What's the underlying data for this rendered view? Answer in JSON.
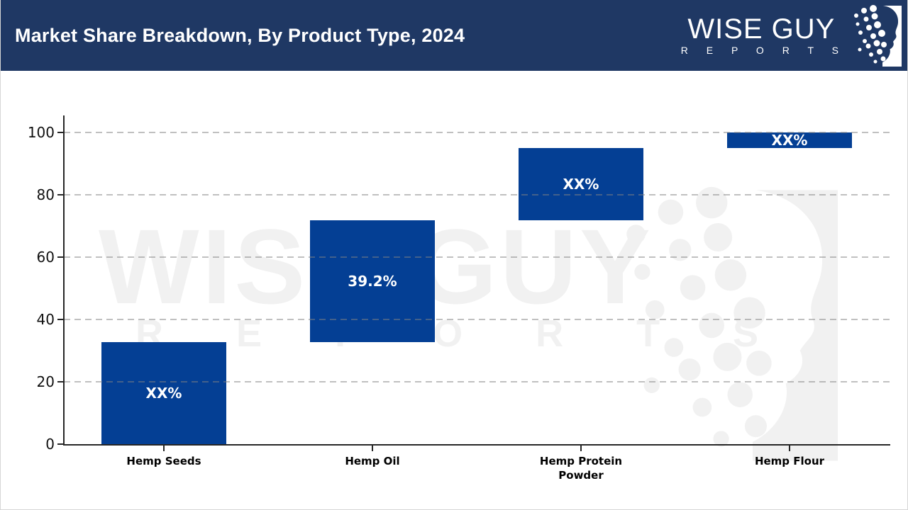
{
  "header": {
    "title": "Market Share Breakdown, By Product Type, 2024",
    "bg_color": "#1f3864",
    "logo": {
      "line1": "WISE GUY",
      "line2": "R E P O R T S"
    }
  },
  "watermark": {
    "line1": "WISE GUY",
    "line2": "R E P O R T S"
  },
  "chart_data": {
    "type": "bar",
    "subtype": "waterfall",
    "title": "Market Share Breakdown, By Product Type, 2024",
    "categories": [
      "Hemp Seeds",
      "Hemp Oil",
      "Hemp Protein Powder",
      "Hemp Flour"
    ],
    "bar_labels": [
      "XX%",
      "39.2%",
      "XX%",
      "XX%"
    ],
    "segments": [
      {
        "start": 0,
        "end": 32.7,
        "value_est": 32.7
      },
      {
        "start": 32.7,
        "end": 71.9,
        "value": 39.2
      },
      {
        "start": 71.9,
        "end": 94.9,
        "value_est": 23.0
      },
      {
        "start": 94.9,
        "end": 100.0,
        "value_est": 5.1
      }
    ],
    "ylim": [
      0,
      105
    ],
    "yticks": [
      0,
      20,
      40,
      60,
      80,
      100
    ],
    "grid": "dashed-horizontal",
    "legend": "none",
    "bar_color": "#043f94",
    "bar_label_color": "#ffffff"
  }
}
